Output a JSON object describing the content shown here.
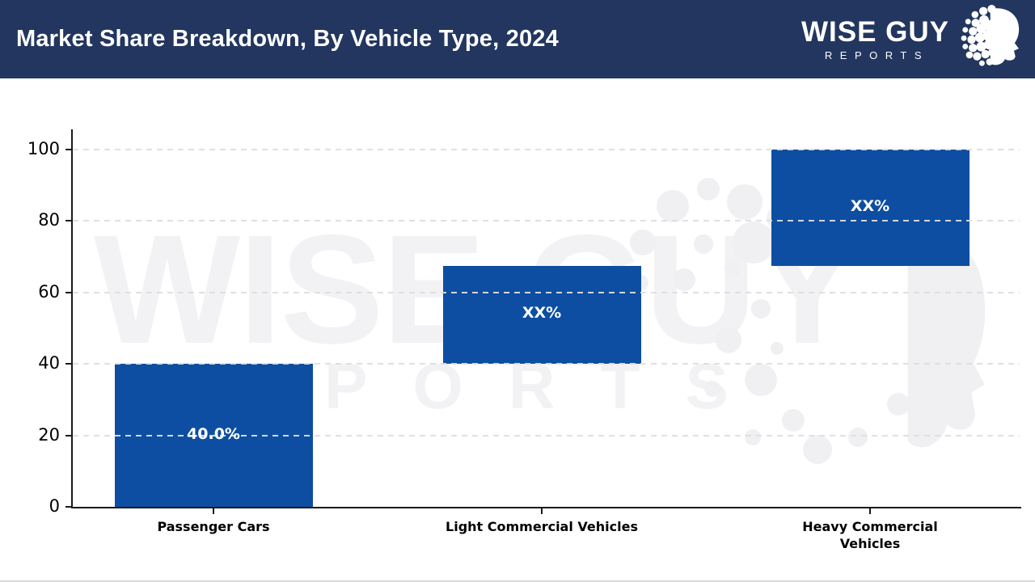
{
  "header": {
    "title": "Market Share Breakdown, By Vehicle Type, 2024",
    "bg_color": "#22365F",
    "logo": {
      "line1": "WISE GUY",
      "line2": "REPORTS"
    }
  },
  "watermark": {
    "line1": "WISE GUY",
    "line2": "REPORTS"
  },
  "chart_data": {
    "type": "bar",
    "subtype": "waterfall-floating-bars",
    "title": "Market Share Breakdown, By Vehicle Type, 2024",
    "categories": [
      "Passenger Cars",
      "Light Commercial Vehicles",
      "Heavy Commercial Vehicles"
    ],
    "series": [
      {
        "name": "Market share (%)",
        "segments": [
          {
            "from": 0,
            "to": 40,
            "label": "40.0%"
          },
          {
            "from": 40,
            "to": 67.5,
            "label": "XX%"
          },
          {
            "from": 67.5,
            "to": 100,
            "label": "XX%"
          }
        ]
      }
    ],
    "yticks": [
      0,
      20,
      40,
      60,
      80,
      100
    ],
    "ylim": [
      0,
      105
    ],
    "grid": "horizontal-dashed",
    "legend": "none",
    "bar_color": "#0D4EA2",
    "bar_label_color": "#FFFFFF",
    "axis_color": "#1A1A1A",
    "xlabel": "",
    "ylabel": ""
  }
}
